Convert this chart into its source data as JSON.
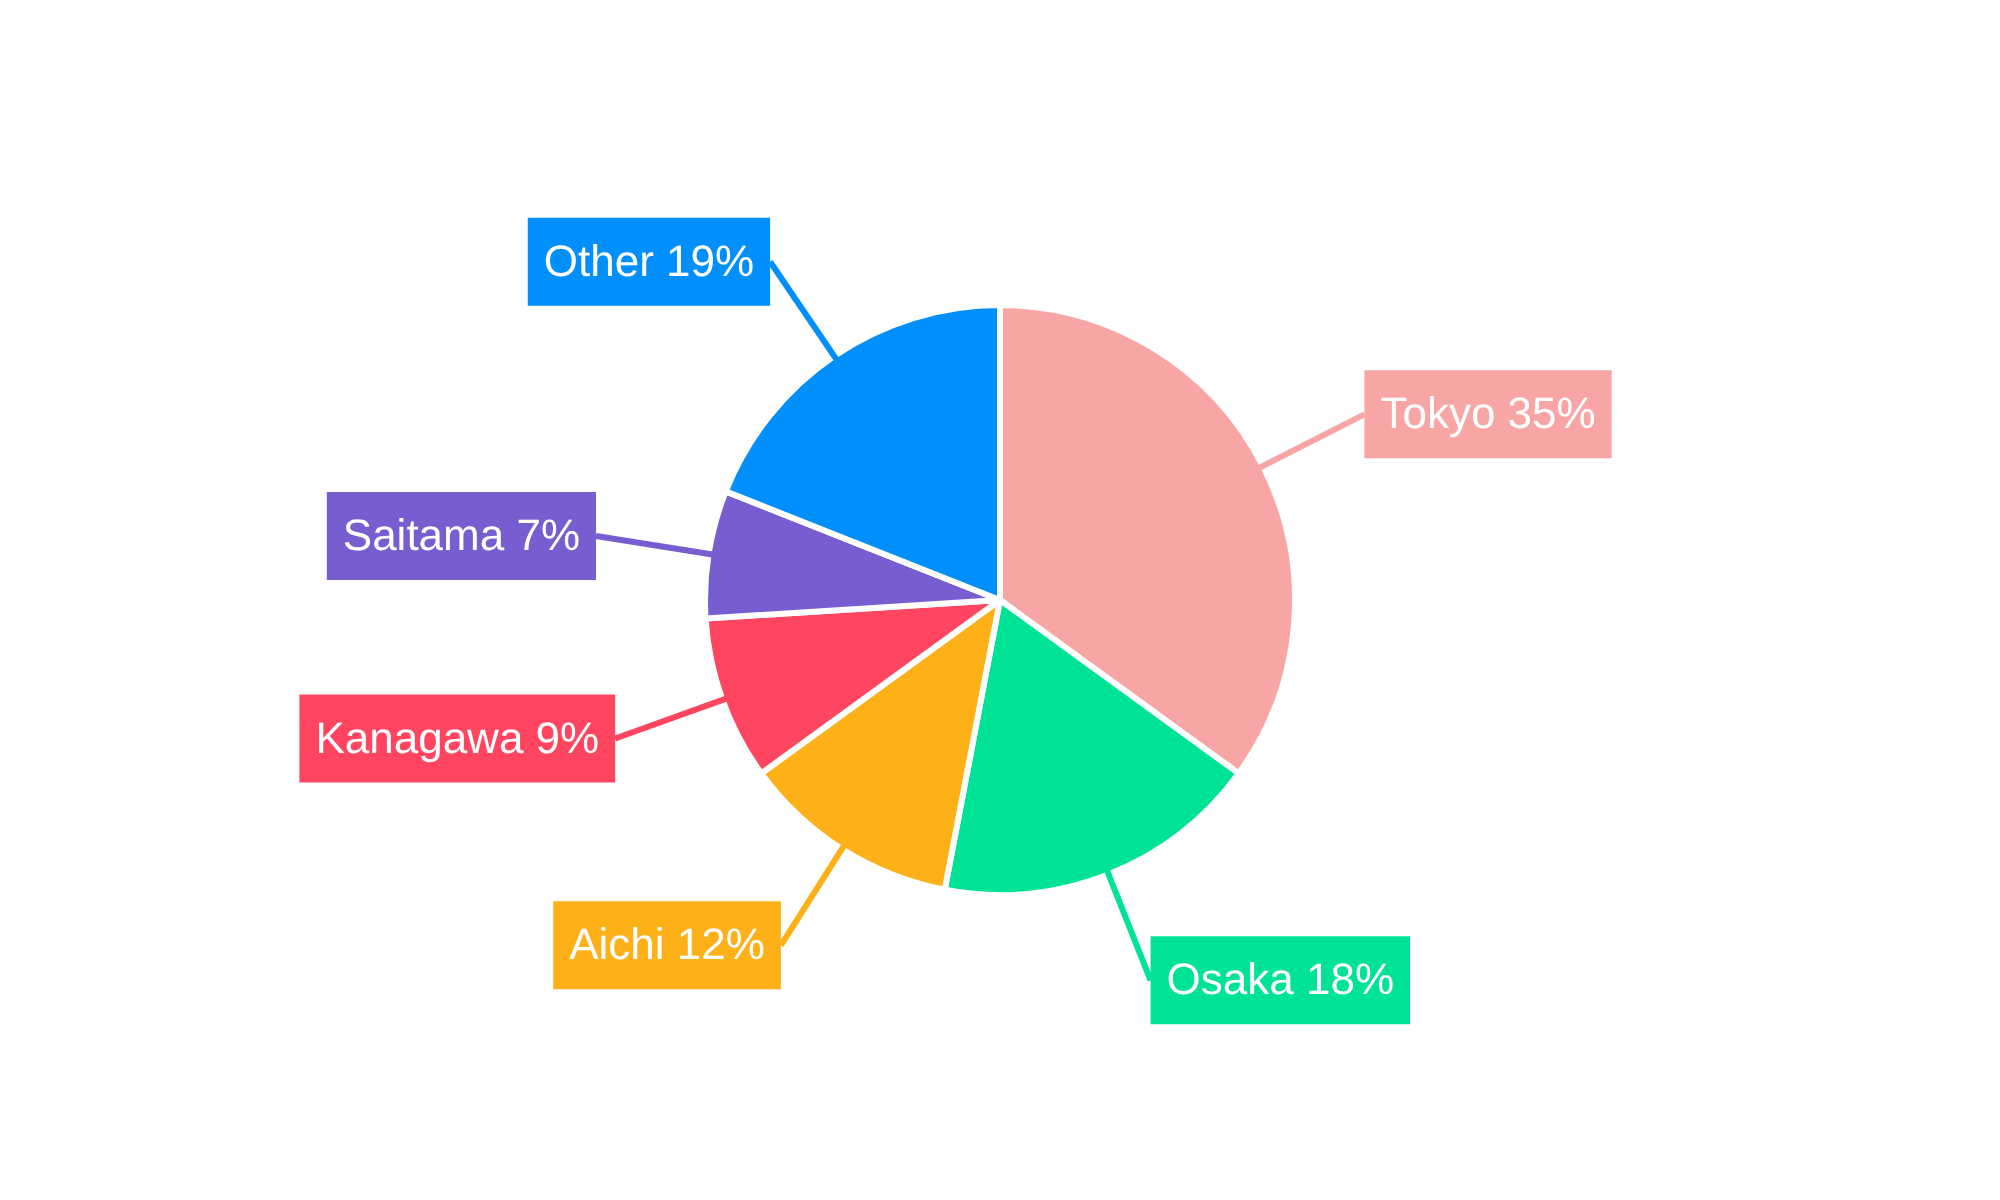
{
  "chart_data": {
    "type": "pie",
    "categories": [
      "Tokyo",
      "Osaka",
      "Aichi",
      "Kanagawa",
      "Saitama",
      "Other"
    ],
    "values": [
      35,
      18,
      12,
      9,
      7,
      19
    ],
    "value_labels": [
      "35%",
      "18%",
      "12%",
      "9%",
      "7%",
      "19%"
    ],
    "colors": [
      "#f8a5a6",
      "#00e396",
      "#feb019",
      "#ff4560",
      "#775dd0",
      "#008ffb"
    ],
    "legend": false
  }
}
